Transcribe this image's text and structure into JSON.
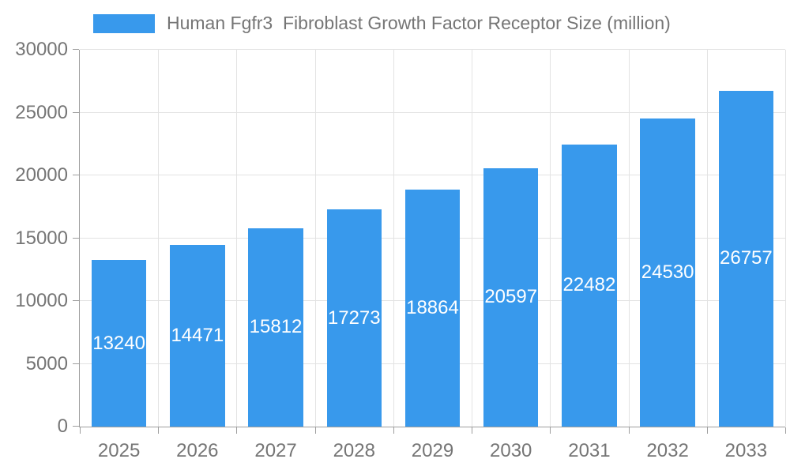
{
  "chart_data": {
    "type": "bar",
    "title": "Human Fgfr3  Fibroblast Growth Factor Receptor Size (million)",
    "categories": [
      "2025",
      "2026",
      "2027",
      "2028",
      "2029",
      "2030",
      "2031",
      "2032",
      "2033"
    ],
    "values": [
      13240,
      14471,
      15812,
      17273,
      18864,
      20597,
      22482,
      24530,
      26757
    ],
    "xlabel": "",
    "ylabel": "",
    "ylim": [
      0,
      30000
    ],
    "ytick_interval": 5000,
    "y_ticks": [
      "0",
      "5000",
      "10000",
      "15000",
      "20000",
      "25000",
      "30000"
    ],
    "grid": true,
    "legend_position": "top-left",
    "bar_width_fraction": 0.7,
    "colors": {
      "bar": "#3899ec",
      "grid": "#e3e3e3",
      "axis": "#9e9e9e",
      "text": "#757575",
      "bar_label": "#ffffff"
    }
  }
}
